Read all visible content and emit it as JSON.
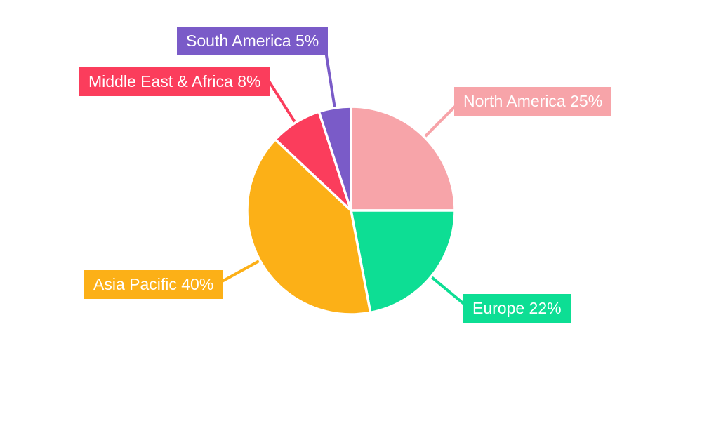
{
  "chart_data": {
    "type": "pie",
    "title": "",
    "start_angle_deg": 0,
    "direction": "clockwise",
    "label_position": "outside",
    "label_text_color": "#ffffff",
    "background_color": "#ffffff",
    "separator_color": "#ffffff",
    "slices": [
      {
        "label": "North America",
        "value": 25,
        "unit": "%",
        "color": "#F7A4A9",
        "label_text": "North America 25%"
      },
      {
        "label": "Europe",
        "value": 22,
        "unit": "%",
        "color": "#0DDE94",
        "label_text": "Europe 22%"
      },
      {
        "label": "Asia Pacific",
        "value": 40,
        "unit": "%",
        "color": "#FCB017",
        "label_text": "Asia Pacific 40%"
      },
      {
        "label": "Middle East & Africa",
        "value": 8,
        "unit": "%",
        "color": "#FB3D5C",
        "label_text": "Middle East & Africa 8%"
      },
      {
        "label": "South America",
        "value": 5,
        "unit": "%",
        "color": "#7A5BC8",
        "label_text": "South America 5%"
      }
    ]
  }
}
